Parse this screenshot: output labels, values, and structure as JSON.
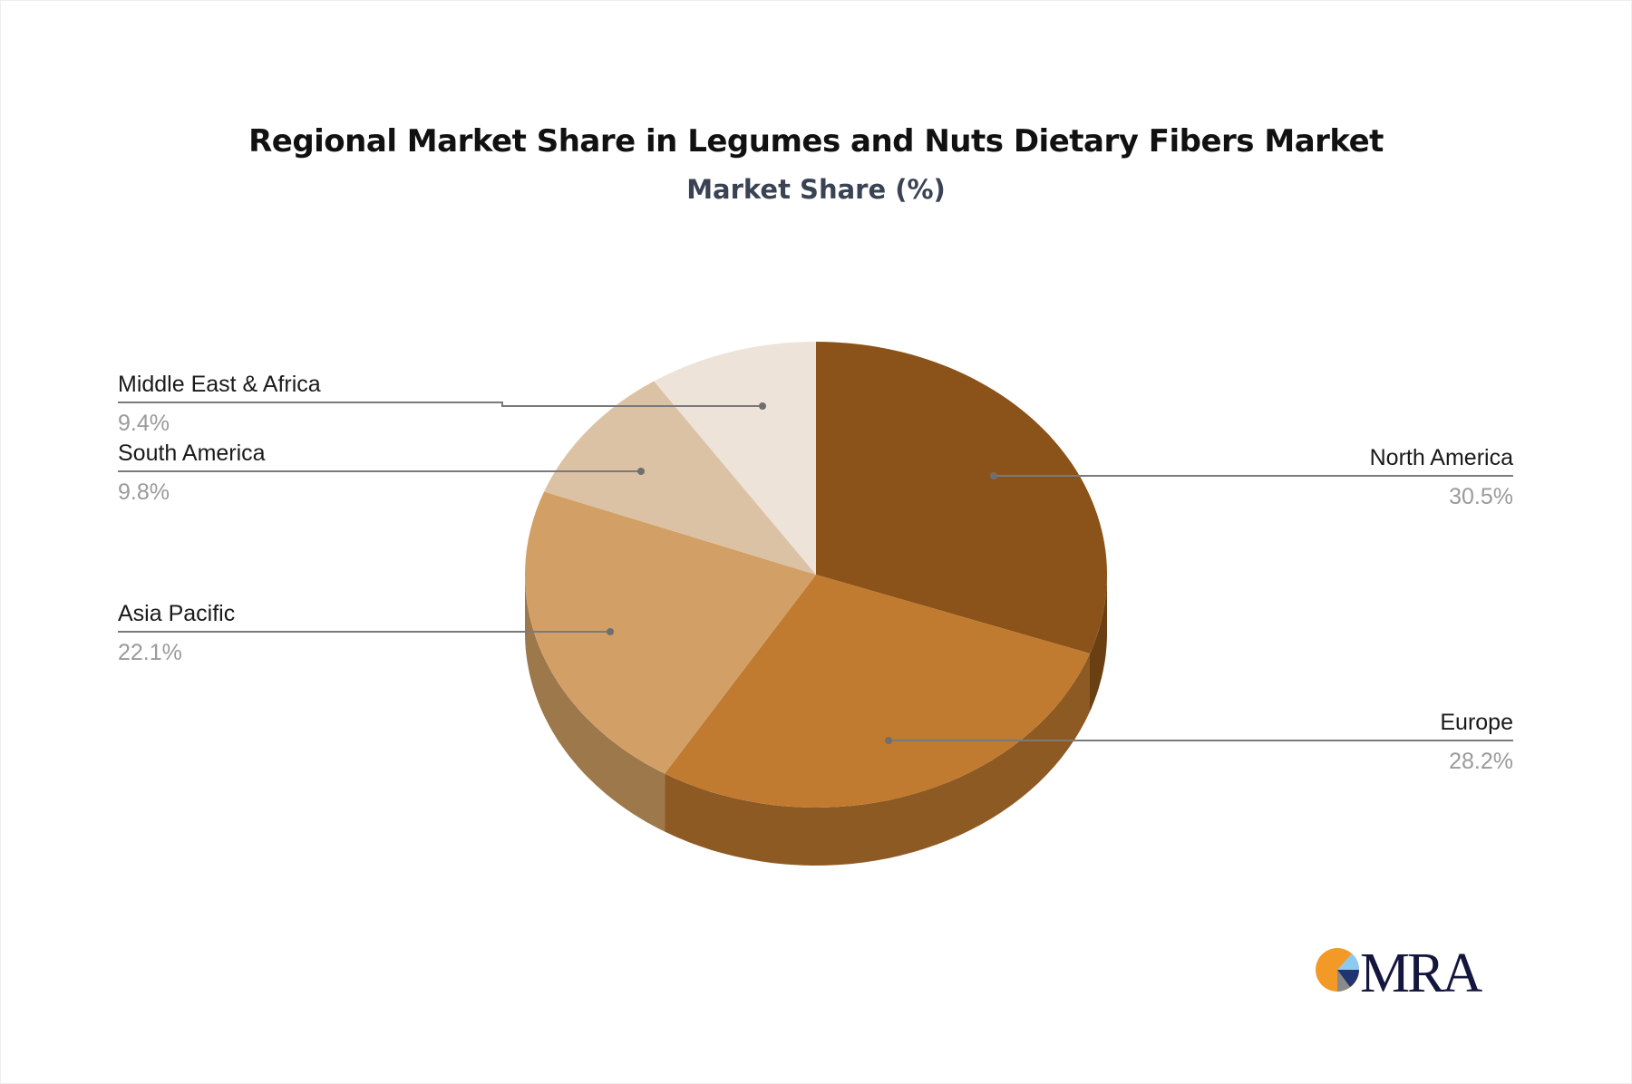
{
  "chart_data": {
    "type": "pie",
    "title": "Regional Market Share in Legumes and Nuts Dietary Fibers Market",
    "subtitle": "Market Share (%)",
    "style": "3d",
    "slices": [
      {
        "label": "North America",
        "value": 30.5,
        "value_label": "30.5%",
        "color": "#8b5319",
        "side_color": "#6a3f12"
      },
      {
        "label": "Europe",
        "value": 28.2,
        "value_label": "28.2%",
        "color": "#c07b30",
        "side_color": "#8e5a24"
      },
      {
        "label": "Asia Pacific",
        "value": 22.1,
        "value_label": "22.1%",
        "color": "#d2a067",
        "side_color": "#9c784b"
      },
      {
        "label": "South America",
        "value": 9.8,
        "value_label": "9.8%",
        "color": "#dcc2a4",
        "side_color": "#a89378"
      },
      {
        "label": "Middle East & Africa",
        "value": 9.4,
        "value_label": "9.4%",
        "color": "#ede3d9",
        "side_color": "#b5aca3"
      }
    ]
  },
  "logo": {
    "text": "MRA",
    "colors": [
      "#f39a26",
      "#8ec9ef",
      "#1f3470",
      "#8a8a8a",
      "#14163d"
    ]
  }
}
